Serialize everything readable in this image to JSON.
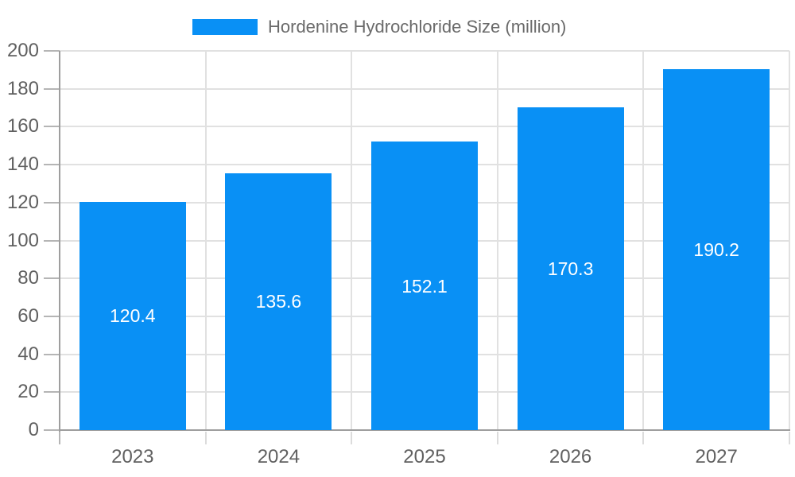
{
  "chart_data": {
    "type": "bar",
    "title": "",
    "xlabel": "",
    "ylabel": "",
    "legend_label": "Hordenine Hydrochloride Size (million)",
    "legend_position": "top",
    "categories": [
      "2023",
      "2024",
      "2025",
      "2026",
      "2027"
    ],
    "values": [
      120.4,
      135.6,
      152.1,
      170.3,
      190.2
    ],
    "value_labels": [
      "120.4",
      "135.6",
      "152.1",
      "170.3",
      "190.2"
    ],
    "value_label_placement": "inside-center",
    "ylim": [
      0,
      200
    ],
    "ytick_step": 20,
    "grid": true,
    "style": {
      "bar_color": "#0990F5",
      "value_label_color": "#ffffff",
      "axis_line_color": "#9e9e9e",
      "gridline_color": "#e1e1e1",
      "y_tick_color": "#b5b5b5",
      "x_tick_color": "#dcdcdc",
      "tick_label_color": "#606060",
      "legend_label_color": "#6a6a6a",
      "background_color": "#ffffff"
    }
  }
}
